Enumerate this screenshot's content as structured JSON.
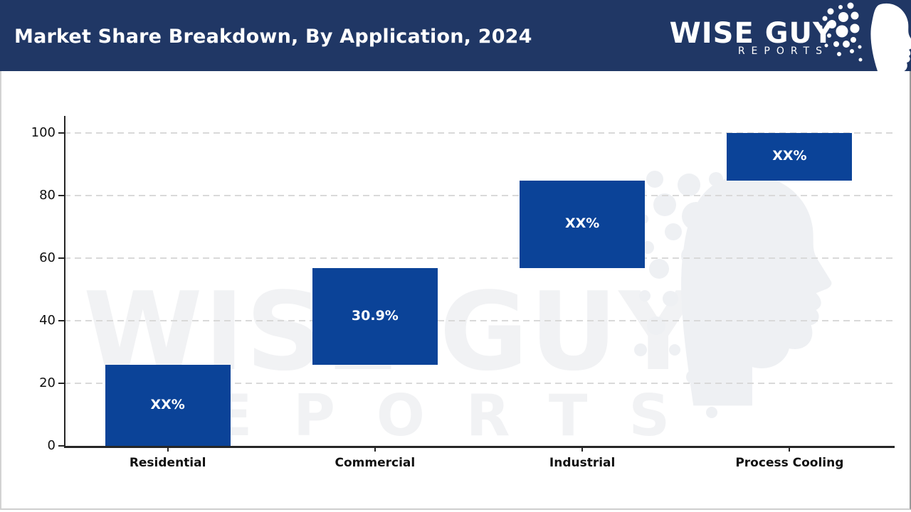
{
  "header": {
    "title": "Market Share Breakdown, By Application, 2024",
    "logo": {
      "line1": "WISE GUY",
      "line2": "REPORTS"
    }
  },
  "watermark": {
    "line1": "WISE GUY",
    "line2": "REPORTS"
  },
  "colors": {
    "header_bg": "#203765",
    "bar": "#0b4398",
    "bar_label": "#ffffff",
    "grid": "#d9d9d9",
    "axis": "#262626",
    "tick_text": "#111111",
    "watermark": "#f1f2f4"
  },
  "chart_data": {
    "type": "bar",
    "subtype": "waterfall",
    "title": "Market Share Breakdown, By Application, 2024",
    "categories": [
      "Residential",
      "Commercial",
      "Industrial",
      "Process Cooling"
    ],
    "segments": [
      {
        "category": "Residential",
        "start": 0,
        "end": 25.9,
        "label": "XX%"
      },
      {
        "category": "Commercial",
        "start": 25.9,
        "end": 56.8,
        "label": "30.9%"
      },
      {
        "category": "Industrial",
        "start": 56.8,
        "end": 84.8,
        "label": "XX%"
      },
      {
        "category": "Process Cooling",
        "start": 84.8,
        "end": 100,
        "label": "XX%"
      }
    ],
    "xlabel": "",
    "ylabel": "",
    "ylim": [
      0,
      100
    ],
    "yticks": [
      0,
      20,
      40,
      60,
      80,
      100
    ],
    "grid": "horizontal-dashed",
    "legend": "none"
  }
}
